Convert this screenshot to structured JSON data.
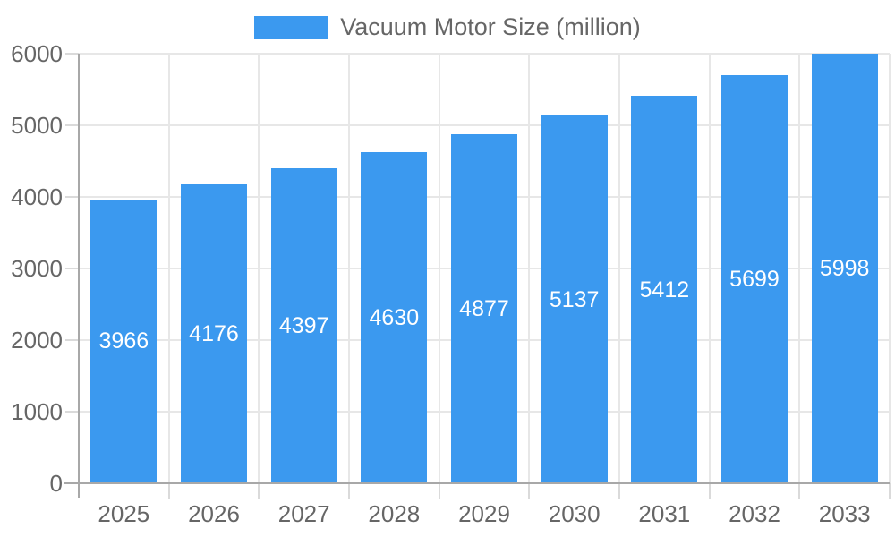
{
  "legend": {
    "label": "Vacuum Motor Size (million)"
  },
  "chart_data": {
    "type": "bar",
    "title": "",
    "xlabel": "",
    "ylabel": "",
    "categories": [
      "2025",
      "2026",
      "2027",
      "2028",
      "2029",
      "2030",
      "2031",
      "2032",
      "2033"
    ],
    "series": [
      {
        "name": "Vacuum Motor Size (million)",
        "values": [
          3966,
          4176,
          4397,
          4630,
          4877,
          5137,
          5412,
          5699,
          5998
        ]
      }
    ],
    "value_labels_shown": true,
    "ylim": [
      0,
      6000
    ],
    "ytick_step": 1000,
    "yticks": [
      "0",
      "1000",
      "2000",
      "3000",
      "4000",
      "5000",
      "6000"
    ],
    "grid": "both",
    "legend_position": "top",
    "colors": {
      "bar": "#3b99ef",
      "grid": "#e7e7e7",
      "tick": "#dadada",
      "axis": "#a8a8a8",
      "text": "#666666",
      "value_label": "#ffffff",
      "background": "#ffffff"
    }
  }
}
